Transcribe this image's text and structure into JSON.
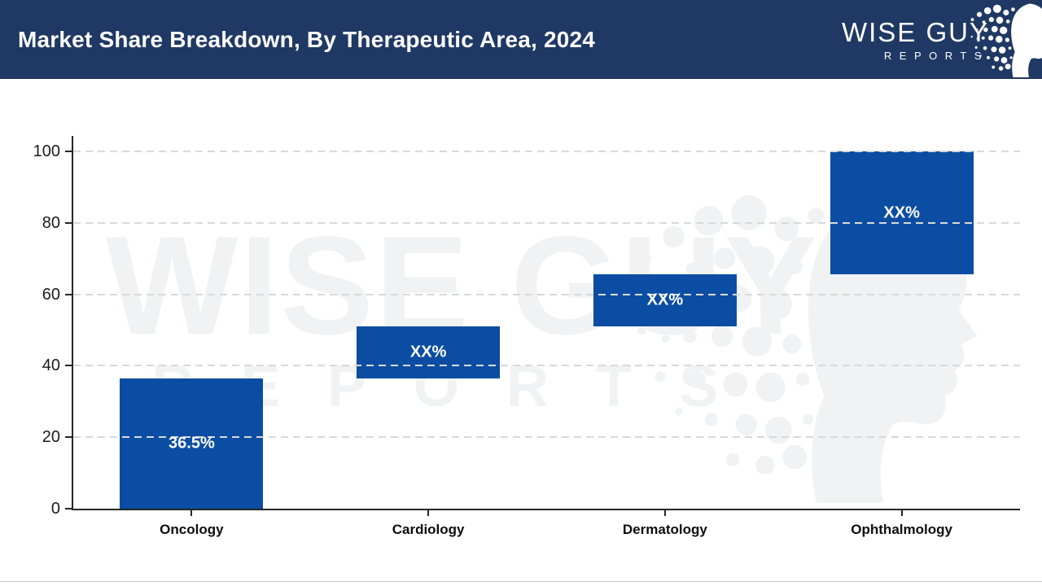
{
  "header": {
    "title": "Market Share Breakdown, By Therapeutic Area, 2024",
    "background_color": "#1f3864",
    "logo": {
      "line1": "WISE GUY",
      "line2": "REPORTS"
    }
  },
  "watermark": {
    "line1": "WISE GUY",
    "line2": "REPORTS"
  },
  "chart_data": {
    "type": "bar",
    "subtype": "waterfall",
    "title": "Market Share Breakdown, By Therapeutic Area, 2024",
    "categories": [
      "Oncology",
      "Cardiology",
      "Dermatology",
      "Ophthalmology"
    ],
    "segments": [
      {
        "category": "Oncology",
        "start": 0,
        "end": 36.5,
        "label": "36.5%"
      },
      {
        "category": "Cardiology",
        "start": 36.5,
        "end": 51,
        "label": "XX%"
      },
      {
        "category": "Dermatology",
        "start": 51,
        "end": 65.5,
        "label": "XX%"
      },
      {
        "category": "Ophthalmology",
        "start": 65.5,
        "end": 100,
        "label": "XX%"
      }
    ],
    "yticks": [
      0,
      20,
      40,
      60,
      80,
      100
    ],
    "ylim": [
      0,
      100
    ],
    "xlabel": "",
    "ylabel": "",
    "bar_color": "#0b4da2",
    "grid": "horizontal-dashed",
    "gridline_color": "#d9d9d9",
    "legend": "none"
  }
}
